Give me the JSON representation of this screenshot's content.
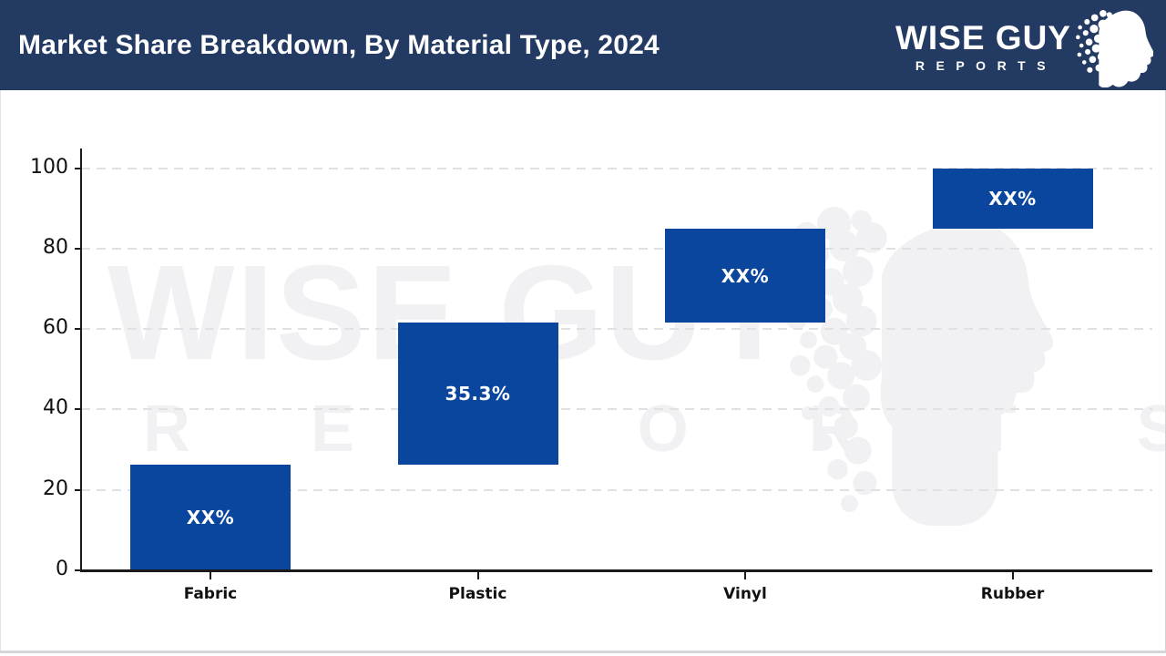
{
  "header": {
    "title": "Market Share Breakdown, By Material Type, 2024",
    "logo": {
      "wordmark": "WISE GUY",
      "subtitle": "REPORTS"
    }
  },
  "watermark": {
    "line1": "WISE GUY",
    "line2": "R E P O R T S"
  },
  "colors": {
    "header_bg": "#233a63",
    "bar": "#0a459e",
    "bar_label": "#ffffff",
    "axis": "#1a1a1a",
    "gridline": "#e1e1e4",
    "watermark": "#f1f1f4",
    "logo_white": "#ffffff"
  },
  "chart_data": {
    "type": "bar",
    "subtype": "waterfall",
    "title": "Market Share Breakdown, By Material Type, 2024",
    "categories": [
      "Fabric",
      "Plastic",
      "Vinyl",
      "Rubber"
    ],
    "segments": [
      {
        "category": "Fabric",
        "start": 0,
        "end": 26.2,
        "value": 26.2,
        "label": "XX%"
      },
      {
        "category": "Plastic",
        "start": 26.2,
        "end": 61.5,
        "value": 35.3,
        "label": "35.3%"
      },
      {
        "category": "Vinyl",
        "start": 61.5,
        "end": 85.0,
        "value": 23.5,
        "label": "XX%"
      },
      {
        "category": "Rubber",
        "start": 85.0,
        "end": 100,
        "value": 15.0,
        "label": "XX%"
      }
    ],
    "xlabel": "",
    "ylabel": "",
    "ylim": [
      0,
      100
    ],
    "yticks": [
      0,
      20,
      40,
      60,
      80,
      100
    ],
    "grid": "horizontal-dashed",
    "legend": "none"
  }
}
